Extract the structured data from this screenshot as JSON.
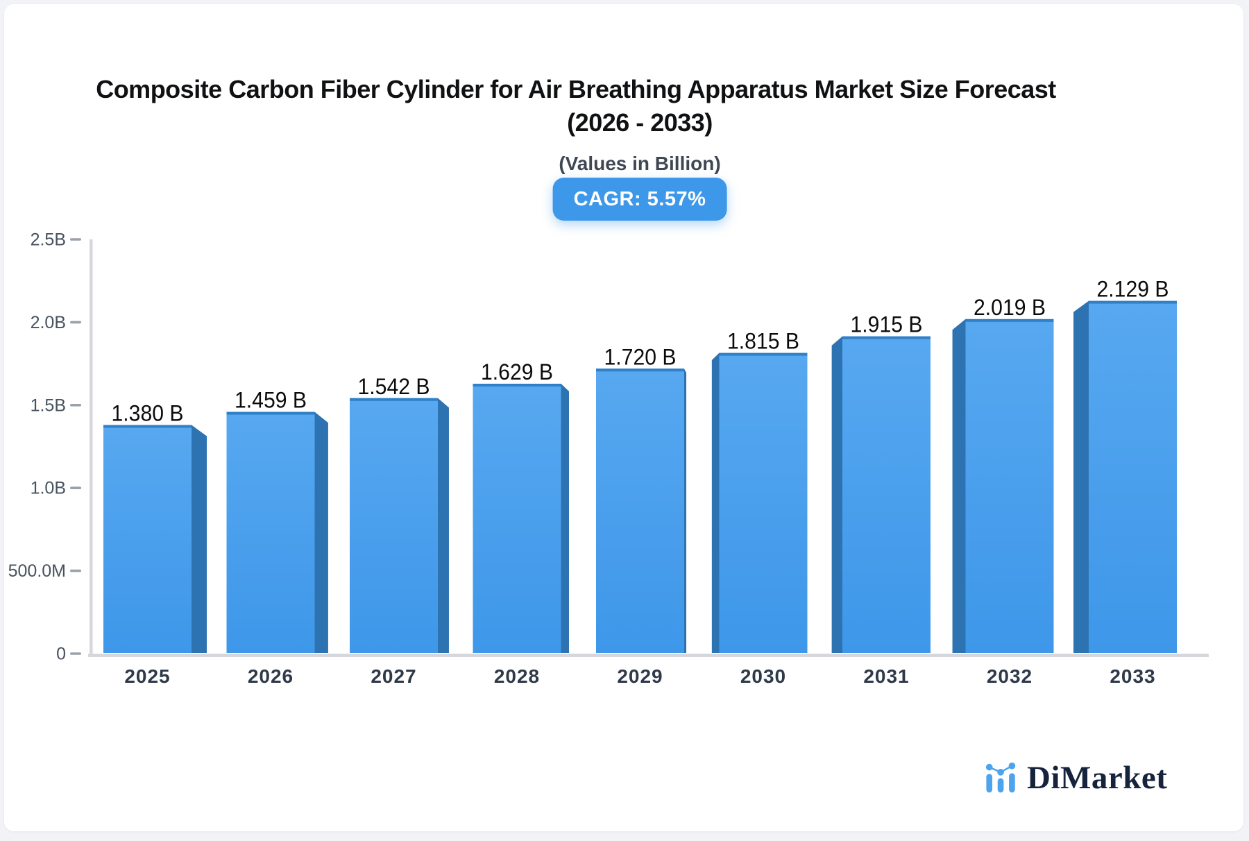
{
  "header": {
    "title_line1": "Composite Carbon Fiber Cylinder for Air Breathing Apparatus Market Size Forecast",
    "title_line2": "(2026 - 2033)",
    "subtitle": "(Values in Billion)",
    "badge_label": "CAGR: 5.57%"
  },
  "chart_data": {
    "type": "bar",
    "style": "3d-perspective-columns",
    "title": "Composite Carbon Fiber Cylinder for Air Breathing Apparatus Market Size Forecast (2026 - 2033)",
    "subtitle": "(Values in Billion)",
    "cagr": "5.57%",
    "categories": [
      "2025",
      "2026",
      "2027",
      "2028",
      "2029",
      "2030",
      "2031",
      "2032",
      "2033"
    ],
    "values": [
      1.38,
      1.459,
      1.542,
      1.629,
      1.72,
      1.815,
      1.915,
      2.019,
      2.129
    ],
    "value_labels": [
      "1.380 B",
      "1.459 B",
      "1.542 B",
      "1.629 B",
      "1.720 B",
      "1.815 B",
      "1.915 B",
      "2.019 B",
      "2.129 B"
    ],
    "unit": "B",
    "xlabel": "",
    "ylabel": "",
    "ylim": [
      0,
      2.5
    ],
    "grid": false,
    "legend": false,
    "yticks": [
      {
        "value": 2.5,
        "label": "2.5B"
      },
      {
        "value": 2.0,
        "label": "2.0B"
      },
      {
        "value": 1.5,
        "label": "1.5B"
      },
      {
        "value": 1.0,
        "label": "1.0B"
      },
      {
        "value": 0.5,
        "label": "500.0M"
      },
      {
        "value": 0.0,
        "label": "0"
      }
    ]
  },
  "colors": {
    "bar_face_top": "#57a8f0",
    "bar_face_bottom": "#3e97e9",
    "bar_top_edge": "#2b7bc1",
    "bar_side": "#2d73b1",
    "axis_line": "#d6d7dd",
    "tick_dash": "#9aa1ac",
    "tick_text": "#47525f",
    "year_text": "#2e3949",
    "value_text": "#0b0b0b",
    "badge_bg": "#3d98ea",
    "badge_text": "#ffffff",
    "logo_blue": "#4da3ee",
    "logo_navy": "#15233c",
    "card_bg": "#ffffff",
    "page_bg": "#f2f3f6"
  },
  "logo": {
    "text": "DiMarket"
  }
}
